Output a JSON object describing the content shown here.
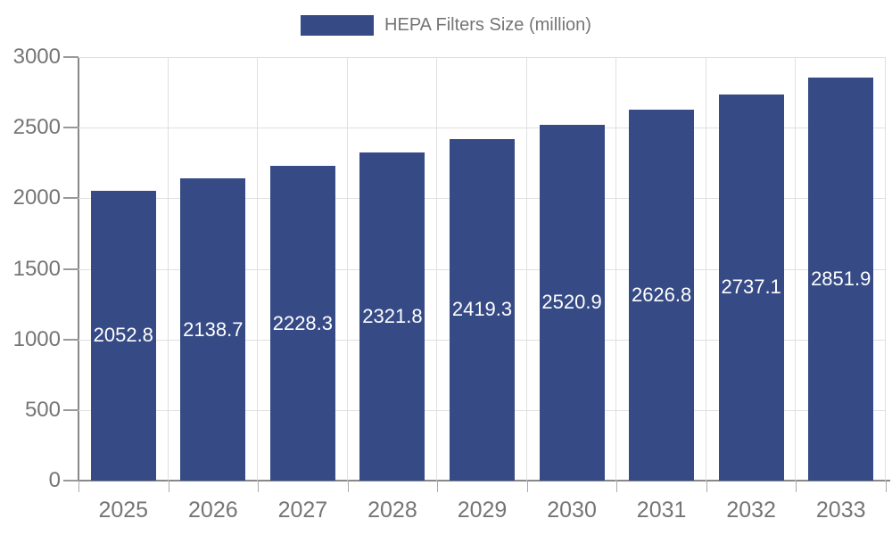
{
  "legend": {
    "label": "HEPA Filters Size (million)"
  },
  "chart_data": {
    "type": "bar",
    "title": "",
    "xlabel": "",
    "ylabel": "",
    "categories": [
      "2025",
      "2026",
      "2027",
      "2028",
      "2029",
      "2030",
      "2031",
      "2032",
      "2033"
    ],
    "series": [
      {
        "name": "HEPA Filters Size (million)",
        "values": [
          2052.8,
          2138.7,
          2228.3,
          2321.8,
          2419.3,
          2520.9,
          2626.8,
          2737.1,
          2851.9
        ]
      }
    ],
    "value_labels": [
      "2052.8",
      "2138.7",
      "2228.3",
      "2321.8",
      "2419.3",
      "2520.9",
      "2626.8",
      "2737.1",
      "2851.9"
    ],
    "ylim": [
      0,
      3000
    ],
    "yticks": [
      0,
      500,
      1000,
      1500,
      2000,
      2500,
      3000
    ],
    "ytick_labels": [
      "0",
      "500",
      "1000",
      "1500",
      "2000",
      "2500",
      "3000"
    ],
    "grid": true,
    "legend_position": "top-center",
    "colors": {
      "bar": "#364A85",
      "axis": "#888888",
      "grid": "#e0e0e0",
      "tick_label": "#757575",
      "value_label": "#ffffff",
      "background": "#ffffff"
    }
  }
}
